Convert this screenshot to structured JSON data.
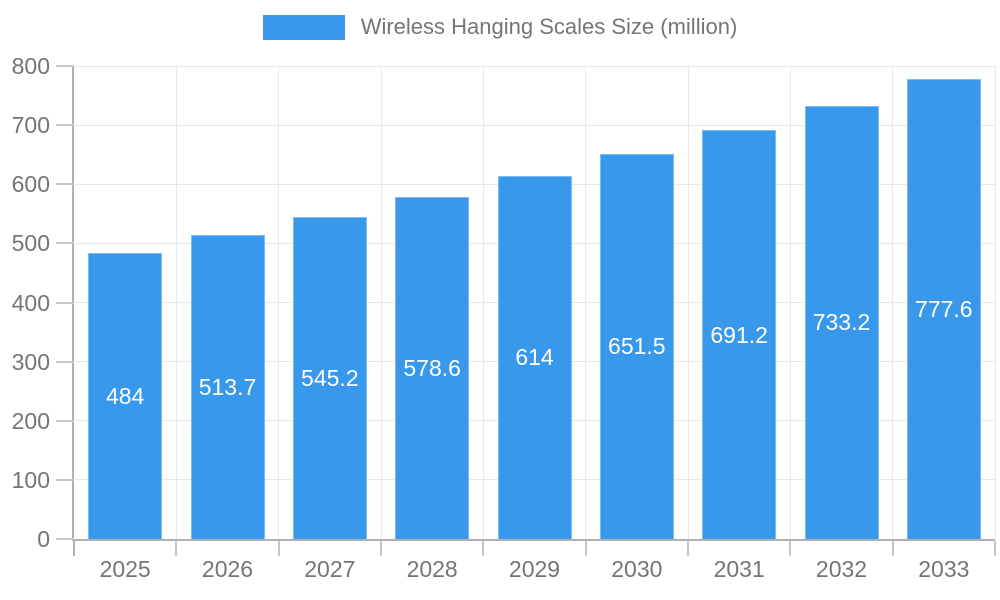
{
  "legend": {
    "label": "Wireless Hanging Scales Size (million)"
  },
  "colors": {
    "background": "#ffffff",
    "bar_fill": "#3898ec",
    "bar_edge": "rgba(255,255,255,0.35)",
    "axis_line": "#b0b0b0",
    "gridline": "#e8e8e8",
    "tick": "#c6c6c6",
    "axis_text": "#757575",
    "value_text": "#ffffff"
  },
  "chart_data": {
    "type": "bar",
    "title": "Wireless Hanging Scales Size (million)",
    "categories": [
      "2025",
      "2026",
      "2027",
      "2028",
      "2029",
      "2030",
      "2031",
      "2032",
      "2033"
    ],
    "series": [
      {
        "name": "Wireless Hanging Scales Size (million)",
        "values": [
          484,
          513.7,
          545.2,
          578.6,
          614,
          651.5,
          691.2,
          733.2,
          777.6
        ],
        "value_labels": [
          "484",
          "513.7",
          "545.2",
          "578.6",
          "614",
          "651.5",
          "691.2",
          "733.2",
          "777.6"
        ]
      }
    ],
    "xlabel": "",
    "ylabel": "",
    "ylim": [
      0,
      800
    ],
    "ytick_step": 100,
    "ytick_labels": [
      "0",
      "100",
      "200",
      "300",
      "400",
      "500",
      "600",
      "700",
      "800"
    ],
    "grid": true,
    "legend_position": "top",
    "value_label_position": "inside-center"
  }
}
